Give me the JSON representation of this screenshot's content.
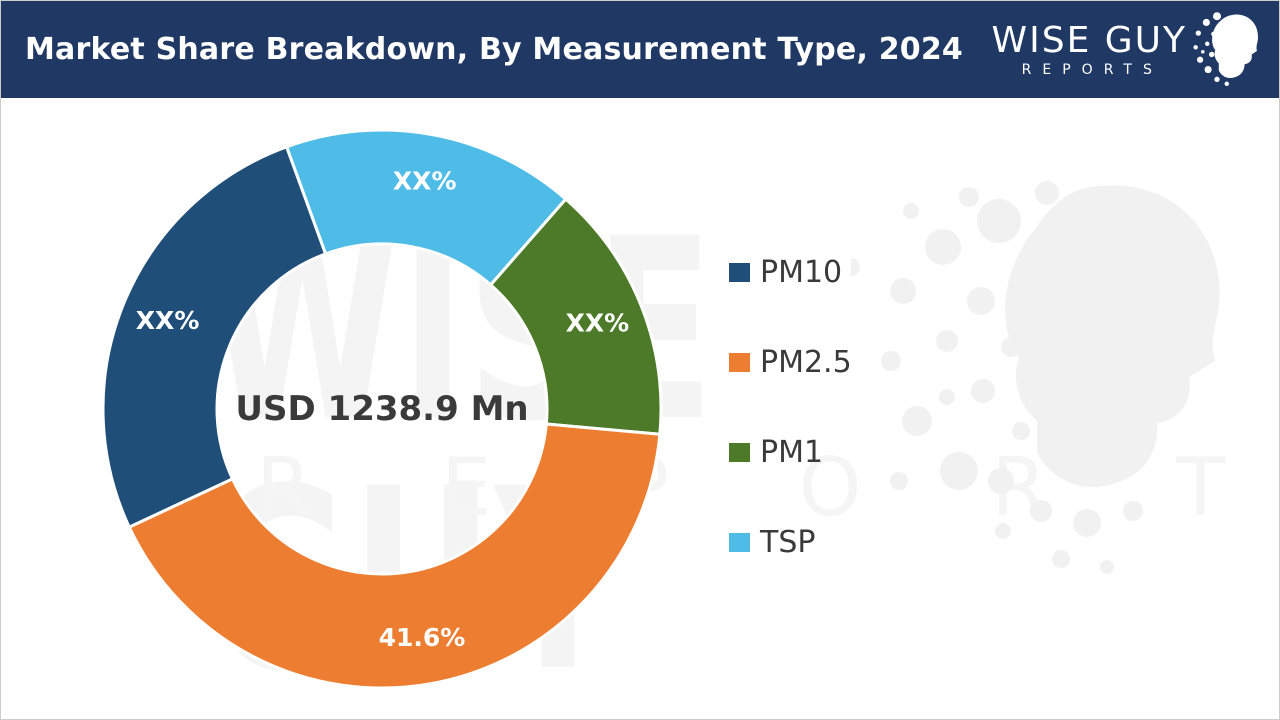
{
  "header": {
    "title": "Market Share Breakdown, By Measurement Type, 2024",
    "logo": {
      "name": "WISE GUY",
      "sub": "REPORTS"
    }
  },
  "watermark": {
    "line1": "WISE GUY",
    "line2": "R E P O R T S"
  },
  "chart_data": {
    "type": "pie",
    "subtype": "donut",
    "title": "Market Share Breakdown, By Measurement Type, 2024",
    "center_label": "USD 1238.9 Mn",
    "direction": "clockwise",
    "start_angle_deg": -20,
    "inner_radius_ratio": 0.59,
    "segments": [
      {
        "name": "TSP",
        "label": "XX%",
        "percent": 17.0,
        "color": "#4FBCE7"
      },
      {
        "name": "PM1",
        "label": "XX%",
        "percent": 15.0,
        "color": "#4D7A28"
      },
      {
        "name": "PM2.5",
        "label": "41.6%",
        "percent": 41.6,
        "color": "#ED7D31"
      },
      {
        "name": "PM10",
        "label": "XX%",
        "percent": 26.4,
        "color": "#1F4E79"
      }
    ],
    "legend_position": "right",
    "legend": [
      {
        "label": "PM10",
        "color": "#1F4E79"
      },
      {
        "label": "PM2.5",
        "color": "#ED7D31"
      },
      {
        "label": "PM1",
        "color": "#4D7A28"
      },
      {
        "label": "TSP",
        "color": "#4FBCE7"
      }
    ]
  },
  "colors": {
    "header_bg": "#203864",
    "text_dark": "#3a3a3a",
    "page_border": "#cccccc",
    "watermark": "#f4f4f4"
  }
}
